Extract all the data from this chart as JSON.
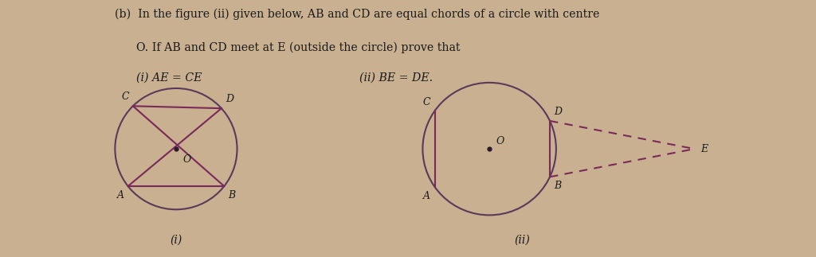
{
  "background_color": "#c8b090",
  "text_color": "#1a1a1a",
  "title_line1": "(b)  In the figure (ii) given below, AB and CD are equal chords of a circle with centre",
  "title_line2": "      O. If AB and CD meet at E (outside the circle) prove that",
  "sub_line1": "      (i) AE = CE",
  "sub_line2": "(ii) BE = DE.",
  "fig_label_i": "(i)",
  "fig_label_ii": "(ii)",
  "chord_color": "#7a2a5a",
  "circle_color": "#5a3a5a",
  "dot_color": "#2a1a2a"
}
